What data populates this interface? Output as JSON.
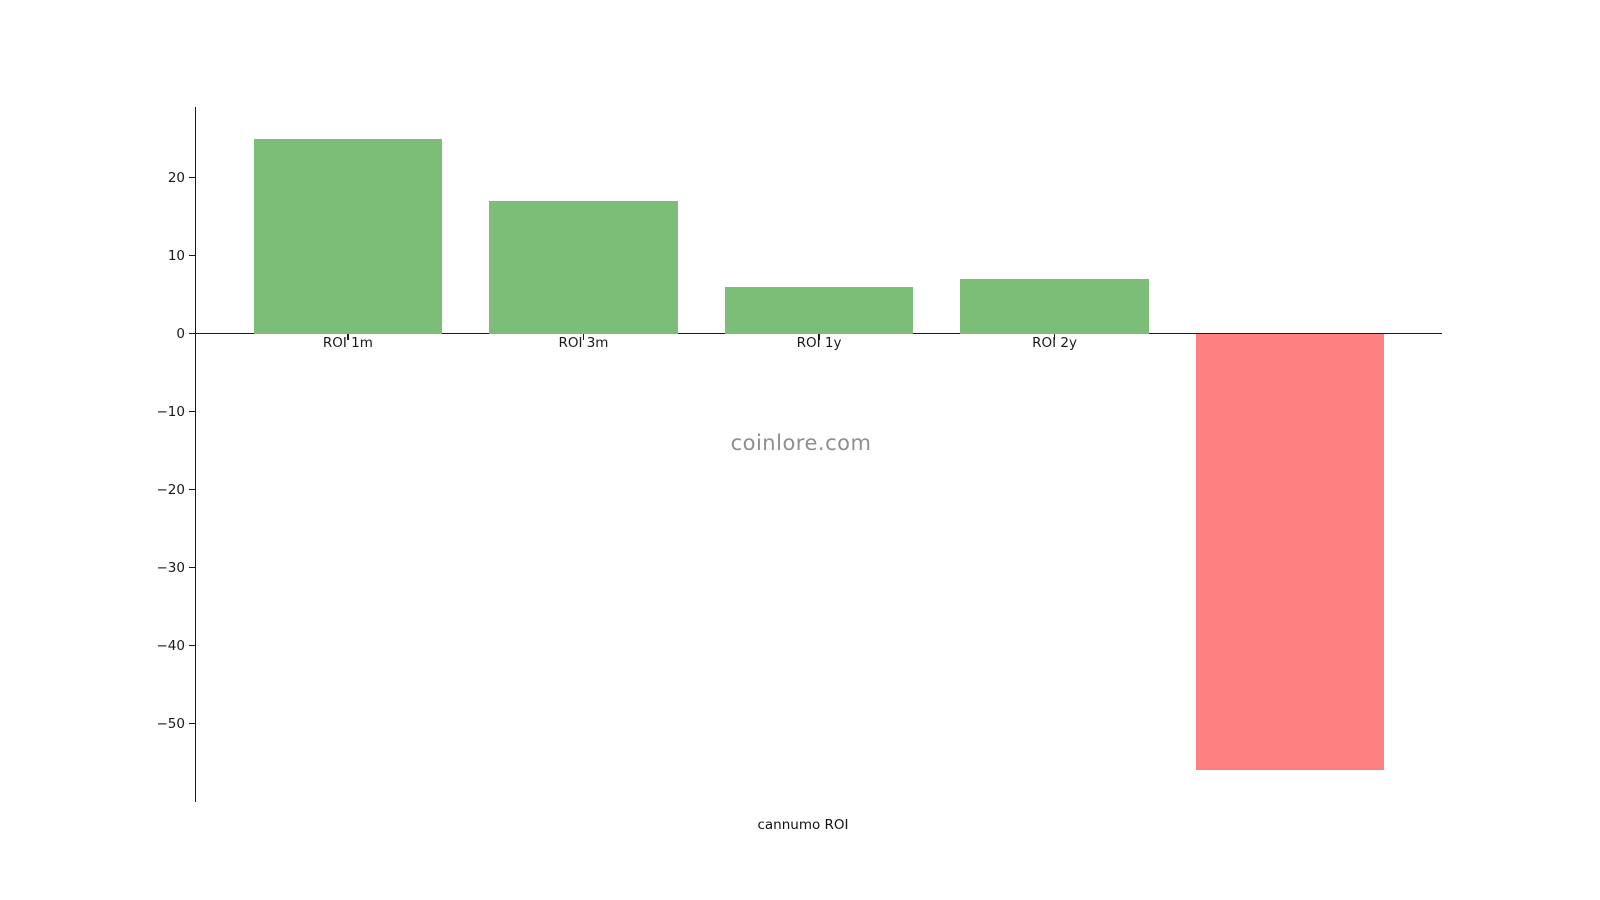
{
  "watermark": {
    "text": "coinlore.com",
    "color": "#8f8f8f"
  },
  "chart_data": {
    "type": "bar",
    "title": "",
    "xlabel": "cannumo ROI",
    "ylabel": "",
    "categories": [
      "ROI 1m",
      "ROI 3m",
      "ROI 1y",
      "ROI 2y",
      ""
    ],
    "values": [
      25,
      17,
      6,
      7,
      -56
    ],
    "series": [
      {
        "name": "cannumo ROI",
        "values": [
          25,
          17,
          6,
          7,
          -56
        ]
      }
    ],
    "bar_colors": [
      "#7cbd78",
      "#7cbd78",
      "#7cbd78",
      "#7cbd78",
      "#fe8181"
    ],
    "positive_color": "#7cbd78",
    "negative_color": "#fe8181",
    "axis_color": "#1a1a1a",
    "yticks": [
      20,
      10,
      0,
      -10,
      -20,
      -30,
      -40,
      -50
    ],
    "ylim": [
      -60.05,
      29.05
    ],
    "xlim": [
      -0.645,
      4.645
    ],
    "bar_width_fraction": 0.8,
    "grid": false,
    "legend_position": "none"
  }
}
